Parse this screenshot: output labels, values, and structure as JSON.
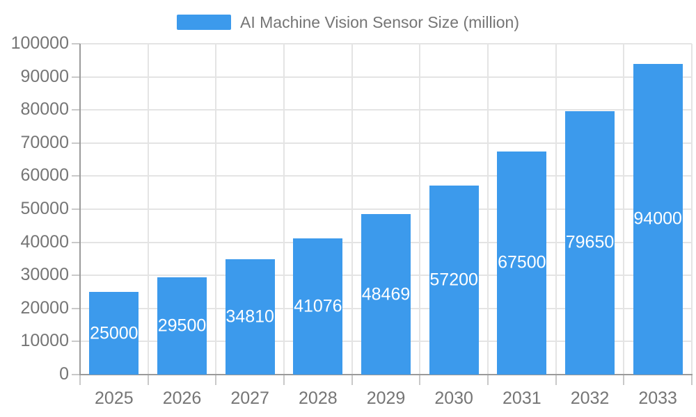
{
  "legend": {
    "label": "AI Machine Vision Sensor Size (million)"
  },
  "chart_data": {
    "type": "bar",
    "title": "AI Machine Vision Sensor Size (million)",
    "categories": [
      "2025",
      "2026",
      "2027",
      "2028",
      "2029",
      "2030",
      "2031",
      "2032",
      "2033"
    ],
    "values": [
      25000,
      29500,
      34810,
      41076,
      48469,
      57200,
      67500,
      79650,
      94000
    ],
    "series_name": "AI Machine Vision Sensor Size (million)",
    "xlabel": "",
    "ylabel": "",
    "ylim": [
      0,
      100000
    ],
    "yticks": [
      0,
      10000,
      20000,
      30000,
      40000,
      50000,
      60000,
      70000,
      80000,
      90000,
      100000
    ],
    "grid": true,
    "legend_position": "top",
    "bar_color": "#3C9AEC",
    "bar_label_color": "#FFFFFF",
    "axis_text_color": "#757575",
    "axis_line_color": "#9A9A9A",
    "gridline_color": "#E4E4E4"
  }
}
